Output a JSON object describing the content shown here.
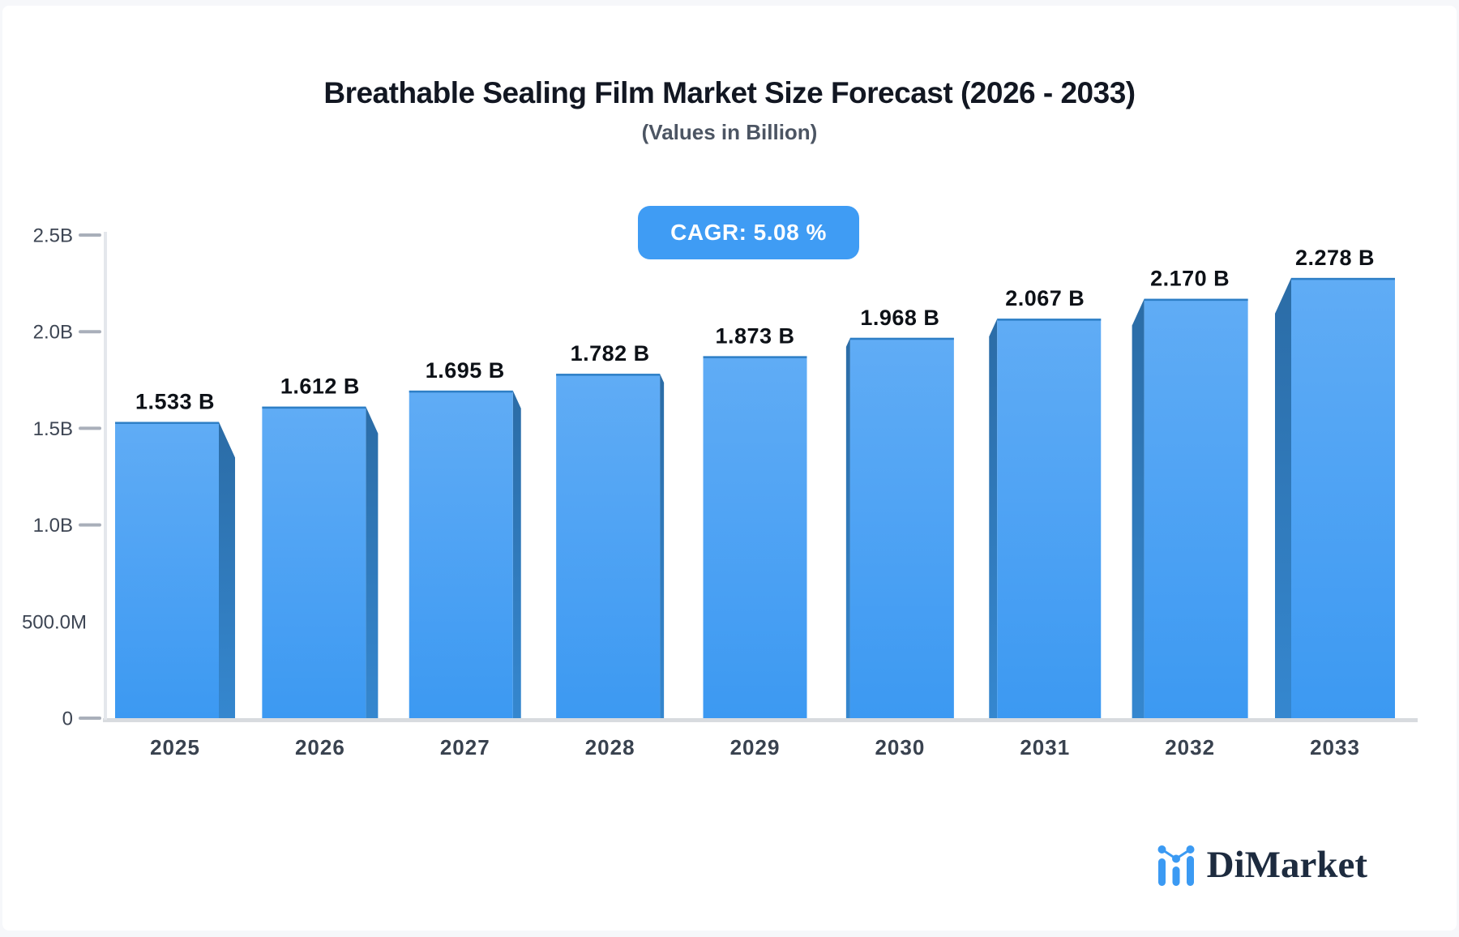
{
  "page": {
    "background": "#f6f7fa",
    "card_background": "#ffffff"
  },
  "header": {
    "title": "Breathable Sealing Film Market Size Forecast (2026 - 2033)",
    "subtitle": "(Values in Billion)",
    "cagr_badge": "CAGR: 5.08 %"
  },
  "chart_data": {
    "type": "bar",
    "title": "Breathable Sealing Film Market Size Forecast (2026 - 2033)",
    "subtitle": "(Values in Billion)",
    "cagr": "5.08 %",
    "categories": [
      "2025",
      "2026",
      "2027",
      "2028",
      "2029",
      "2030",
      "2031",
      "2032",
      "2033"
    ],
    "values": [
      1.533,
      1.612,
      1.695,
      1.782,
      1.873,
      1.968,
      2.067,
      2.17,
      2.278
    ],
    "value_labels": [
      "1.533 B",
      "1.612 B",
      "1.695 B",
      "1.782 B",
      "1.873 B",
      "1.968 B",
      "2.067 B",
      "2.170 B",
      "2.278 B"
    ],
    "xlabel": "",
    "ylabel": "",
    "ylim": [
      0,
      2.5
    ],
    "yticks": [
      {
        "value": 2.5,
        "label": "2.5B",
        "dash": true
      },
      {
        "value": 2.0,
        "label": "2.0B",
        "dash": true
      },
      {
        "value": 1.5,
        "label": "1.5B",
        "dash": true
      },
      {
        "value": 1.0,
        "label": "1.0B",
        "dash": true
      },
      {
        "value": 0.5,
        "label": "500.0M",
        "dash": false
      },
      {
        "value": 0,
        "label": "0",
        "dash": true
      }
    ],
    "grid": false,
    "legend": null,
    "bar_style": "3d-center-perspective",
    "colors": {
      "bar_top": "#60acf5",
      "bar_bottom": "#3c99f2",
      "bar_side_top": "#2b6ca6",
      "bar_side_bottom": "#3587cf",
      "bar_top_edge": "#2e7fc6",
      "axis_line": "#e4e7ec",
      "baseline": "#d8dbdf",
      "tick_dash": "#a9afba",
      "tick_label": "#3d4553",
      "category_label": "#39424f",
      "value_label": "#0d1117",
      "accent": "#3f9cf4"
    }
  },
  "branding": {
    "logo_text": "DiMarket",
    "logo_icon": "mini-bar-line-chart-icon",
    "text_color": "#1d2b3f",
    "icon_color": "#3b9af3"
  }
}
